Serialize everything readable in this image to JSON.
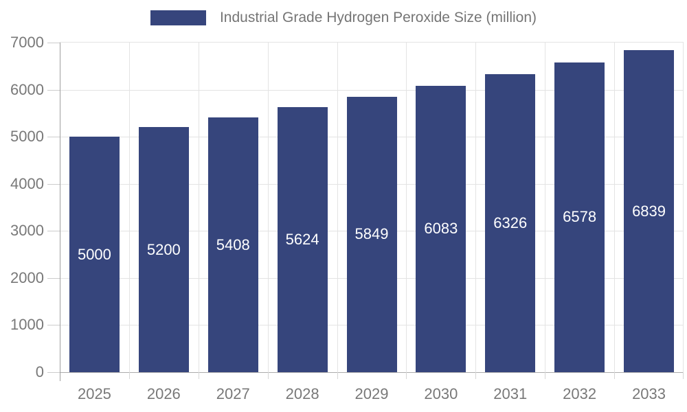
{
  "chart_data": {
    "type": "bar",
    "series_name": "Industrial Grade Hydrogen Peroxide Size (million)",
    "categories": [
      "2025",
      "2026",
      "2027",
      "2028",
      "2029",
      "2030",
      "2031",
      "2032",
      "2033"
    ],
    "values": [
      5000,
      5200,
      5408,
      5624,
      5849,
      6083,
      6326,
      6578,
      6839
    ],
    "yticks": [
      0,
      1000,
      2000,
      3000,
      4000,
      5000,
      6000,
      7000
    ],
    "ylim": [
      0,
      7000
    ],
    "grid": true,
    "legend_position": "top-center",
    "bar_label_position": "inside-center",
    "bar_color": "#36457c",
    "bar_label_color": "#ffffff",
    "axis_text_color": "#787878",
    "gridline_color": "#e3e3e3"
  }
}
